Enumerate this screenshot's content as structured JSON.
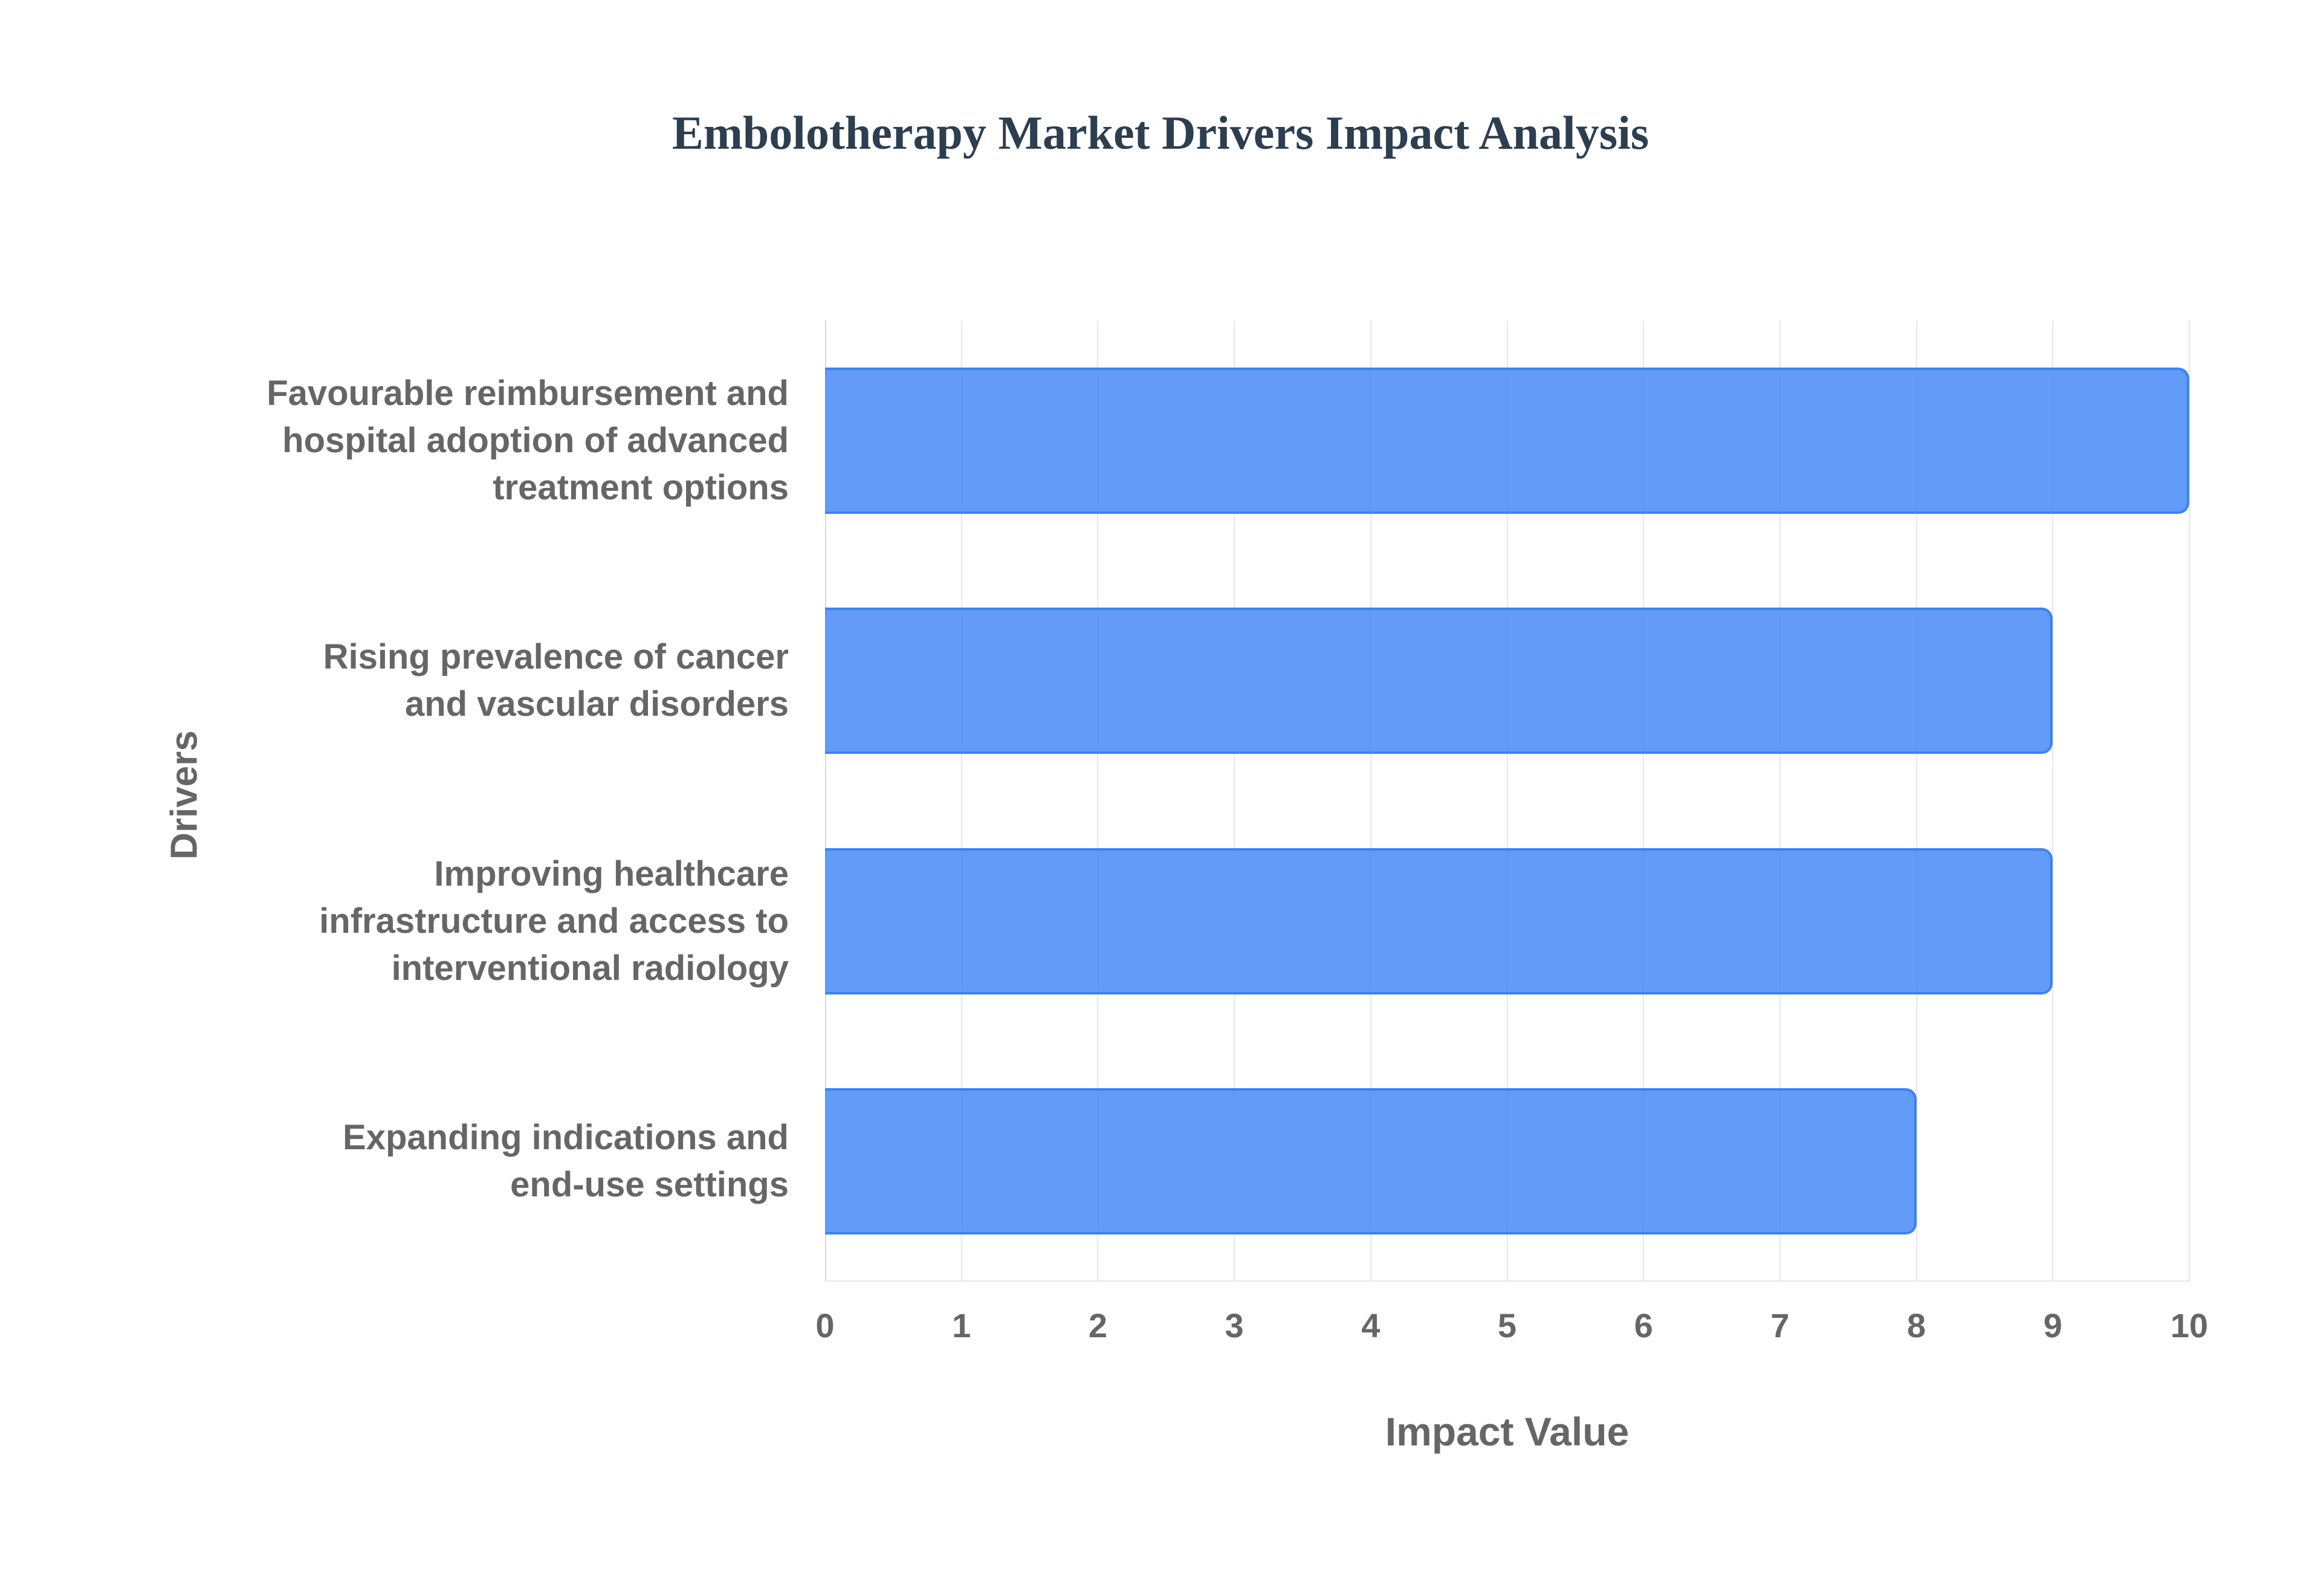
{
  "title": "Embolotherapy Market Drivers Impact Analysis",
  "colors": {
    "bar_fill": "#6199F5",
    "bar_border": "#3B82F6",
    "title": "#2C3E50",
    "label": "#666666",
    "grid": "#E8E8E8"
  },
  "axes": {
    "x_title": "Impact Value",
    "y_title": "Drivers",
    "x_ticks": [
      "0",
      "1",
      "2",
      "3",
      "4",
      "5",
      "6",
      "7",
      "8",
      "9",
      "10"
    ]
  },
  "categories": [
    {
      "lines": [
        "Favourable reimbursement and",
        "hospital adoption of advanced",
        "treatment options"
      ],
      "value": 10
    },
    {
      "lines": [
        "Rising prevalence of cancer",
        "and vascular disorders"
      ],
      "value": 9
    },
    {
      "lines": [
        "Improving healthcare",
        "infrastructure and access to",
        "interventional radiology"
      ],
      "value": 9
    },
    {
      "lines": [
        "Expanding indications and",
        "end-use settings"
      ],
      "value": 8
    }
  ],
  "chart_data": {
    "type": "bar",
    "orientation": "horizontal",
    "title": "Embolotherapy Market Drivers Impact Analysis",
    "xlabel": "Impact Value",
    "ylabel": "Drivers",
    "categories": [
      "Favourable reimbursement and hospital adoption of advanced treatment options",
      "Rising prevalence of cancer and vascular disorders",
      "Improving healthcare infrastructure and access to interventional radiology",
      "Expanding indications and end-use settings"
    ],
    "values": [
      10,
      9,
      9,
      8
    ],
    "xlim": [
      0,
      10
    ],
    "x_ticks": [
      0,
      1,
      2,
      3,
      4,
      5,
      6,
      7,
      8,
      9,
      10
    ],
    "grid": true,
    "legend": null
  }
}
